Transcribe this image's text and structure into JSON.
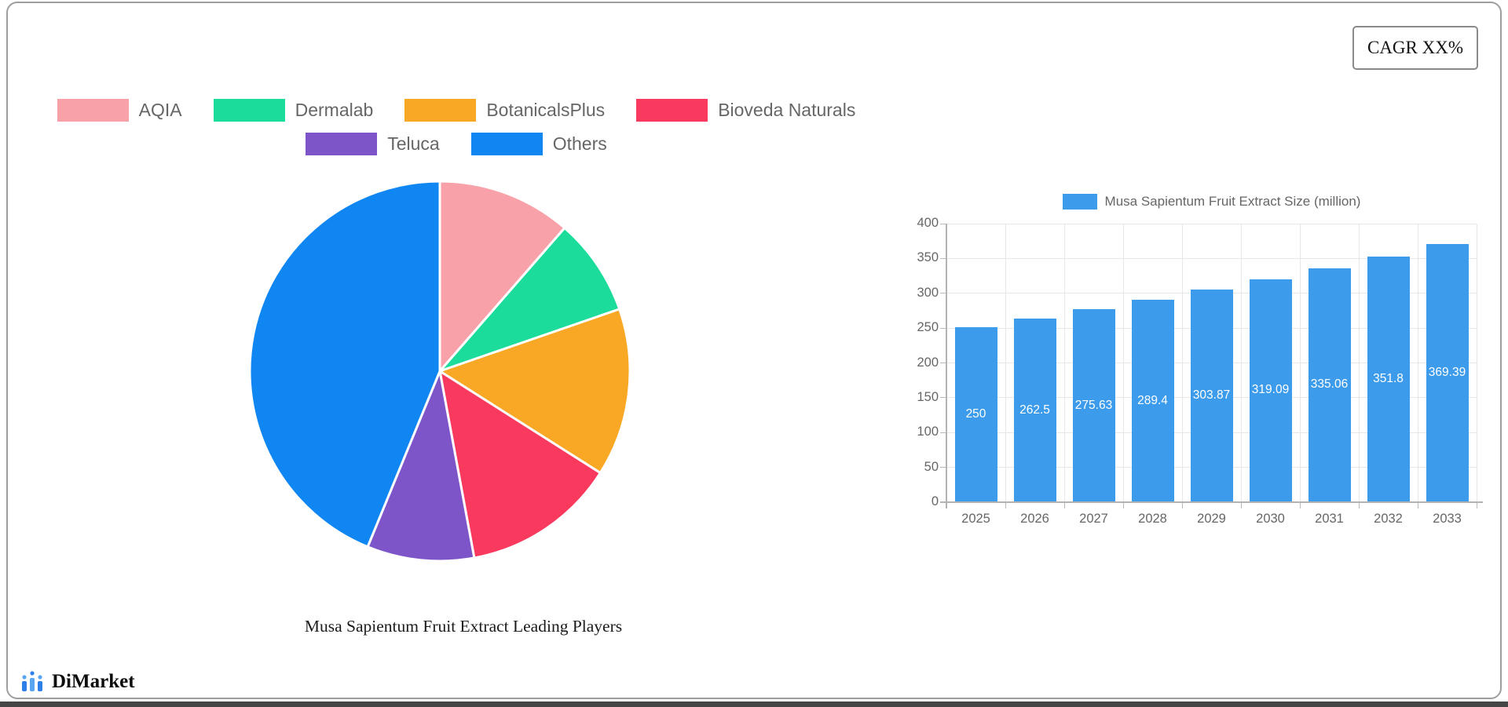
{
  "cagr": {
    "label": "CAGR XX%"
  },
  "branding": {
    "logo_text": "DiMarket",
    "logo_icon": "bar-chart-logo-icon"
  },
  "colors": {
    "bar_blue": "#3d9bec",
    "card_border": "#9e9e9e",
    "legend_text": "#666666"
  },
  "chart_data": [
    {
      "type": "pie",
      "title": "Musa Sapientum Fruit Extract Leading Players",
      "legend_position": "top",
      "start_angle_deg": 0,
      "direction": "clockwise",
      "slices": [
        {
          "label": "AQIA",
          "percent": 11.4,
          "color": "#f8a1a8"
        },
        {
          "label": "Dermalab",
          "percent": 8.3,
          "color": "#1bdc9b"
        },
        {
          "label": "BotanicalsPlus",
          "percent": 14.3,
          "color": "#f9a825"
        },
        {
          "label": "Bioveda Naturals",
          "percent": 13.1,
          "color": "#f93a5e"
        },
        {
          "label": "Teluca",
          "percent": 9.1,
          "color": "#7d55c8"
        },
        {
          "label": "Others",
          "percent": 43.8,
          "color": "#0f86f2"
        }
      ],
      "legend_rows": [
        [
          0,
          1,
          2,
          3
        ],
        [
          4,
          5
        ]
      ]
    },
    {
      "type": "bar",
      "legend": "Musa Sapientum Fruit Extract Size (million)",
      "categories": [
        "2025",
        "2026",
        "2027",
        "2028",
        "2029",
        "2030",
        "2031",
        "2032",
        "2033"
      ],
      "values": [
        250,
        262.5,
        275.63,
        289.4,
        303.87,
        319.09,
        335.06,
        351.8,
        369.39
      ],
      "value_labels": [
        "250",
        "262.5",
        "275.63",
        "289.4",
        "303.87",
        "319.09",
        "335.06",
        "351.8",
        "369.39"
      ],
      "bar_color": "#3d9bec",
      "ylim": [
        0,
        400
      ],
      "ytick_step": 50,
      "grid": true,
      "value_label_style": "white-inside-center"
    }
  ]
}
